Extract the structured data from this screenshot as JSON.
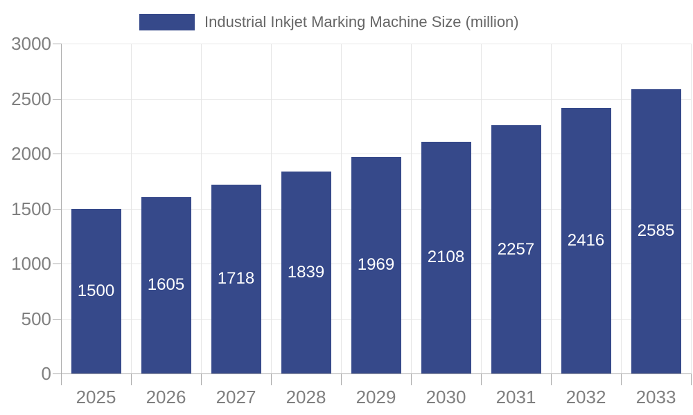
{
  "chart_data": {
    "type": "bar",
    "title": "Industrial Inkjet Marking Machine Size (million)",
    "legend": [
      "Industrial Inkjet Marking Machine Size (million)"
    ],
    "legend_position": "top",
    "categories": [
      "2025",
      "2026",
      "2027",
      "2028",
      "2029",
      "2030",
      "2031",
      "2032",
      "2033"
    ],
    "values": [
      1500,
      1605,
      1718,
      1839,
      1969,
      2108,
      2257,
      2416,
      2585
    ],
    "value_labels": [
      "1500",
      "1605",
      "1718",
      "1839",
      "1969",
      "2108",
      "2257",
      "2416",
      "2585"
    ],
    "xlabel": "",
    "ylabel": "",
    "ylim": [
      0,
      3000
    ],
    "yticks": [
      0,
      500,
      1000,
      1500,
      2000,
      2500,
      3000
    ],
    "ytick_labels": [
      "0",
      "500",
      "1000",
      "1500",
      "2000",
      "2500",
      "3000"
    ],
    "grid": true
  },
  "colors": {
    "bar": "#36498a",
    "bar_value_text": "#ffffff",
    "grid_line": "#e6e6e6",
    "axis_line": "#aaaaaa",
    "axis_text": "#7f7f7f",
    "legend_text": "#666666",
    "background": "#ffffff"
  }
}
